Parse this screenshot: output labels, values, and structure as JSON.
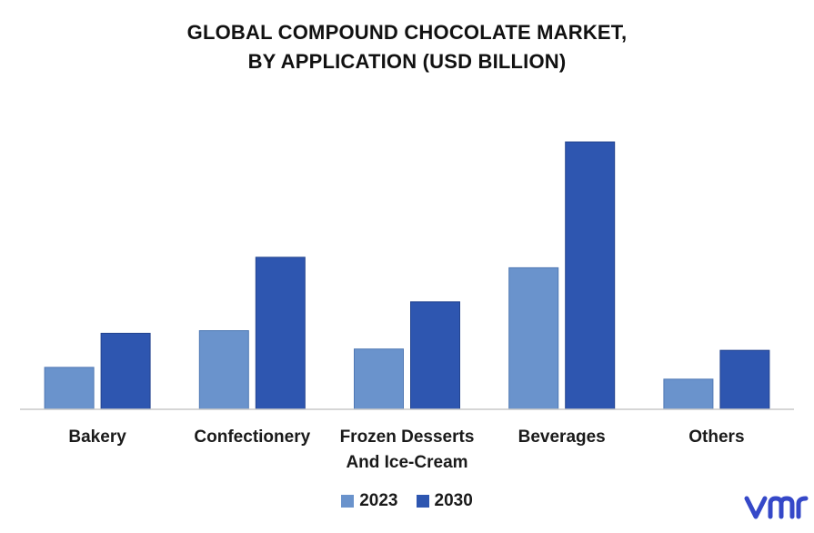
{
  "chart_data": {
    "type": "bar",
    "title_lines": [
      "GLOBAL COMPOUND CHOCOLATE MARKET,",
      "BY APPLICATION (USD BILLION)"
    ],
    "categories": [
      [
        "Bakery"
      ],
      [
        "Confectionery"
      ],
      [
        "Frozen Desserts",
        "And Ice-Cream"
      ],
      [
        "Beverages"
      ],
      [
        "Others"
      ]
    ],
    "series": [
      {
        "name": "2023",
        "color": "#6a93cc",
        "values": [
          1.6,
          3.0,
          2.3,
          5.4,
          1.15
        ]
      },
      {
        "name": "2030",
        "color": "#2e56b0",
        "values": [
          2.9,
          5.8,
          4.1,
          10.2,
          2.25
        ]
      }
    ],
    "ylim": [
      0,
      11
    ],
    "xlabel": "",
    "ylabel": "",
    "grid": false,
    "legend_position": "bottom-center"
  },
  "brand": {
    "logo_icon": "vmr-logo-icon",
    "logo_color": "#3548c8"
  }
}
